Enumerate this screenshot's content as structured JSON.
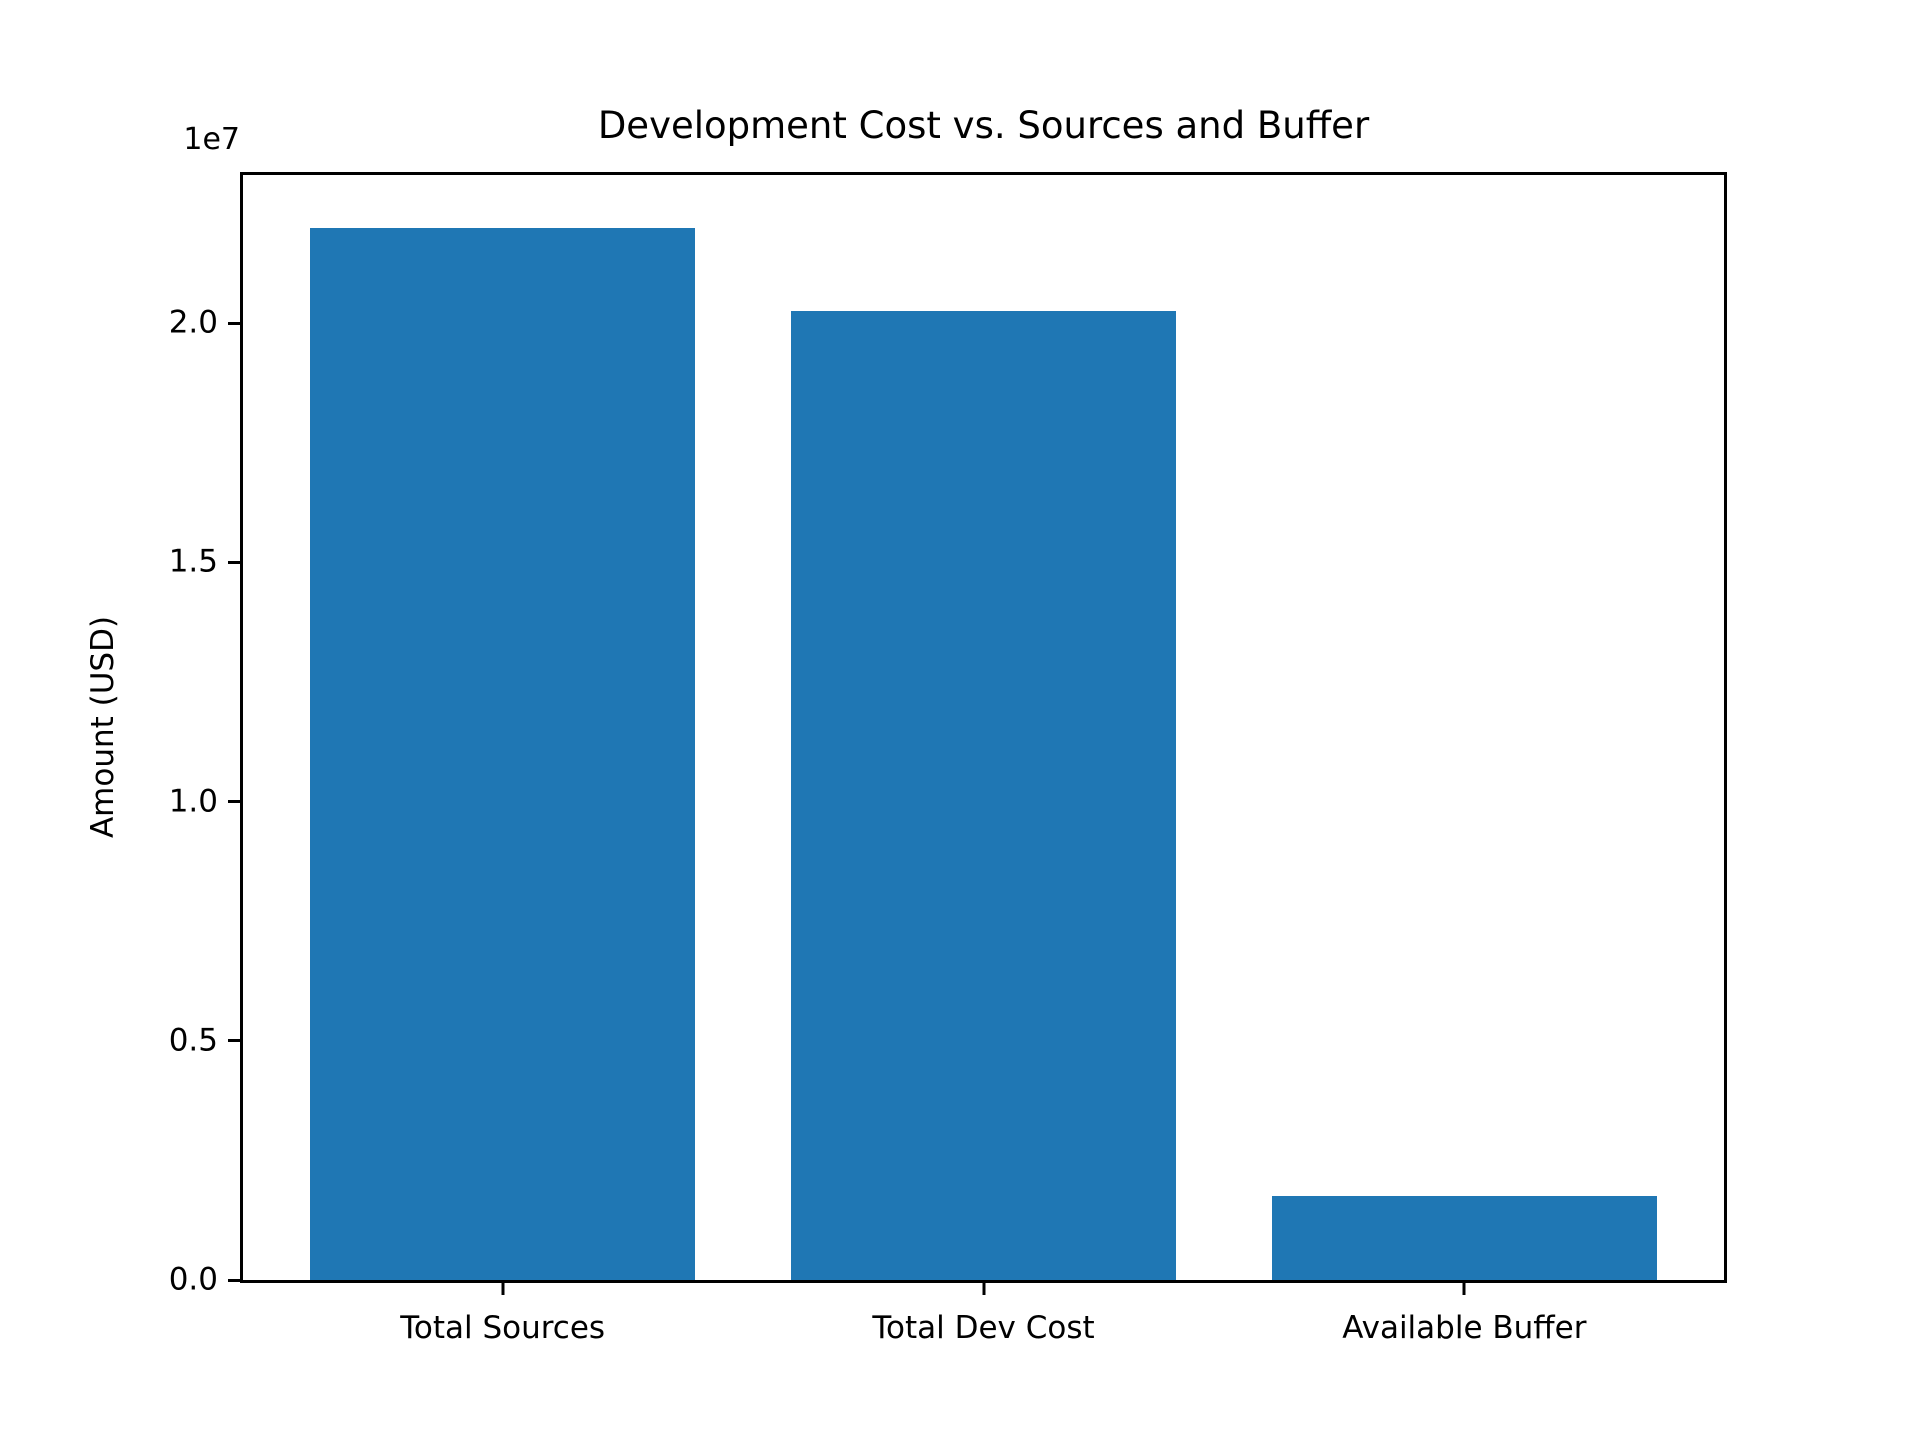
{
  "chart_data": {
    "type": "bar",
    "title": "Development Cost vs. Sources and Buffer",
    "categories": [
      "Total Sources",
      "Total Dev Cost",
      "Available Buffer"
    ],
    "values": [
      22000000,
      20250000,
      1750000
    ],
    "xlabel": "",
    "ylabel": "Amount (USD)",
    "offset_label": "1e7",
    "ylim": [
      0,
      23100000
    ],
    "yticks": [
      0,
      5000000,
      10000000,
      15000000,
      20000000
    ],
    "ytick_labels": [
      "0.0",
      "0.5",
      "1.0",
      "1.5",
      "2.0"
    ],
    "bar_color": "#1f77b4",
    "grid": false,
    "legend_position": "none",
    "background_color": "#ffffff",
    "spine_color": "#000000"
  }
}
